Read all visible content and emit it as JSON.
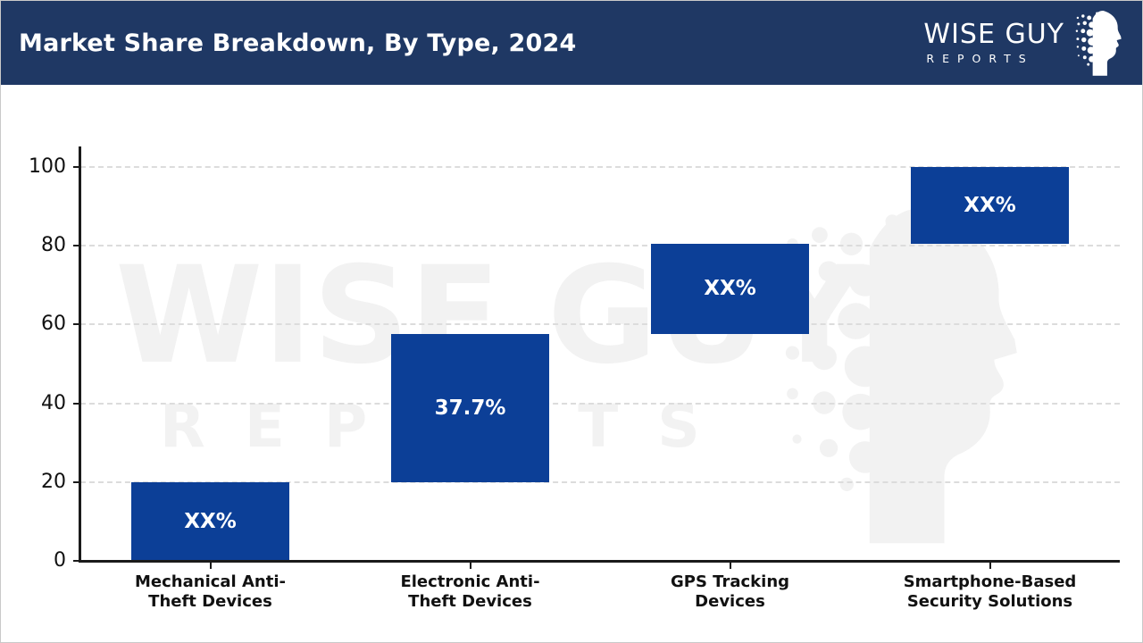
{
  "header": {
    "title": "Market Share Breakdown, By Type, 2024",
    "bg_color": "#1f3864",
    "logo": {
      "line1": "WISE GUY",
      "line2": "REPORTS"
    }
  },
  "watermark": {
    "line1": "WISE GUY",
    "line2": "REPORTS"
  },
  "chart_data": {
    "type": "bar",
    "subtype": "floating-waterfall",
    "title": "Market Share Breakdown, By Type, 2024",
    "categories": [
      "Mechanical Anti-\nTheft Devices",
      "Electronic Anti-\nTheft Devices",
      "GPS Tracking\nDevices",
      "Smartphone-Based\nSecurity Solutions"
    ],
    "segments": [
      {
        "start": 0,
        "end": 20,
        "label": "XX%"
      },
      {
        "start": 20,
        "end": 57.7,
        "label": "37.7%"
      },
      {
        "start": 57.7,
        "end": 80.5,
        "label": "XX%"
      },
      {
        "start": 80.5,
        "end": 100,
        "label": "XX%"
      }
    ],
    "ylim": [
      0,
      100
    ],
    "yticks": [
      0,
      20,
      40,
      60,
      80,
      100
    ],
    "xlabel": "",
    "ylabel": "",
    "grid": "horizontal-dashed",
    "legend": "none",
    "bar_color": "#0c3f97",
    "label_color": "#ffffff",
    "axis_color": "#1a1a1a"
  }
}
